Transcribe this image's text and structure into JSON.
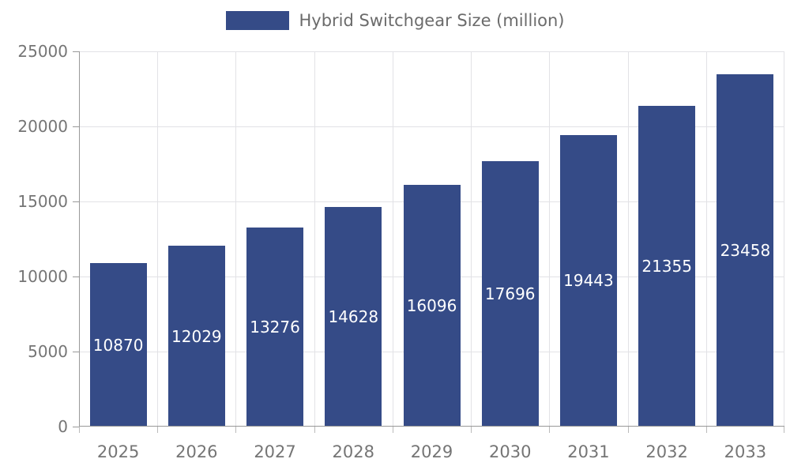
{
  "legend": {
    "label": "Hybrid Switchgear Size (million)"
  },
  "colors": {
    "bar": "#354b87",
    "grid": "#e2e2e6",
    "axis": "#999999",
    "tick": "#bbbbbb",
    "axis_label_text": "#757575",
    "legend_text": "#6b6b6b",
    "value_label_text": "#ffffff",
    "background": "#ffffff"
  },
  "chart_data": {
    "type": "bar",
    "title": "",
    "series_name": "Hybrid Switchgear Size (million)",
    "categories": [
      "2025",
      "2026",
      "2027",
      "2028",
      "2029",
      "2030",
      "2031",
      "2032",
      "2033"
    ],
    "values": [
      10870,
      12029,
      13276,
      14628,
      16096,
      17696,
      19443,
      21355,
      23458
    ],
    "bar_value_labels": [
      "10870",
      "12029",
      "13276",
      "14628",
      "16096",
      "17696",
      "19443",
      "21355",
      "23458"
    ],
    "xlabel": "",
    "ylabel": "",
    "ylim": [
      0,
      25000
    ],
    "yticks": [
      0,
      5000,
      10000,
      15000,
      20000,
      25000
    ],
    "ytick_labels": [
      "0",
      "5000",
      "10000",
      "15000",
      "20000",
      "25000"
    ],
    "grid": true,
    "value_label_position": "inside-center",
    "legend_position": "top-center"
  }
}
